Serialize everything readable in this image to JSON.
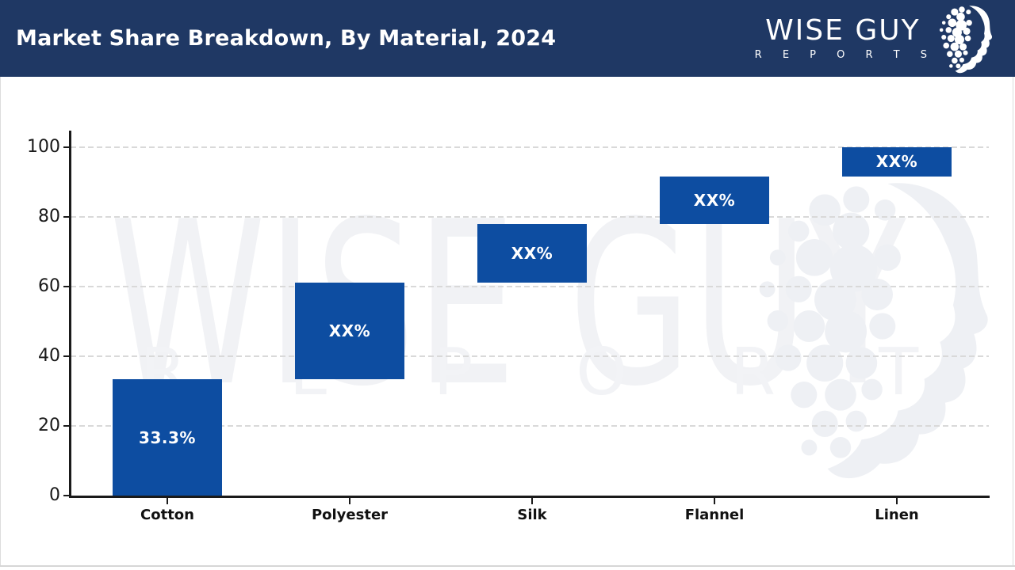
{
  "header": {
    "title": "Market Share Breakdown, By Material, 2024",
    "bg_color": "#1f3864",
    "logo": {
      "line1": "WISE GUY",
      "line2": "R E P O R T S"
    }
  },
  "watermark": {
    "line1": "WISE GUY",
    "line2": "R E P O R T S"
  },
  "chart_data": {
    "type": "bar",
    "subtype": "waterfall",
    "title": "Market Share Breakdown, By Material, 2024",
    "categories": [
      "Cotton",
      "Polyester",
      "Silk",
      "Flannel",
      "Linen"
    ],
    "bars": [
      {
        "category": "Cotton",
        "start": 0,
        "end": 33.3,
        "value": 33.3,
        "label": "33.3%"
      },
      {
        "category": "Polyester",
        "start": 33.3,
        "end": 61.1,
        "value": 27.8,
        "label": "XX%"
      },
      {
        "category": "Silk",
        "start": 61.1,
        "end": 77.9,
        "value": 16.8,
        "label": "XX%"
      },
      {
        "category": "Flannel",
        "start": 77.9,
        "end": 91.6,
        "value": 13.7,
        "label": "XX%"
      },
      {
        "category": "Linen",
        "start": 91.6,
        "end": 100,
        "value": 8.4,
        "label": "XX%"
      }
    ],
    "yticks": [
      0,
      20,
      40,
      60,
      80,
      100
    ],
    "ylim": [
      0,
      104.7
    ],
    "xlabel": "",
    "ylabel": "",
    "grid": "dashed-horizontal",
    "legend": "none",
    "bar_color": "#0d4da1",
    "bar_label_color": "#ffffff",
    "axis_color": "#1a1a1a",
    "grid_color": "#d9d9d9"
  }
}
